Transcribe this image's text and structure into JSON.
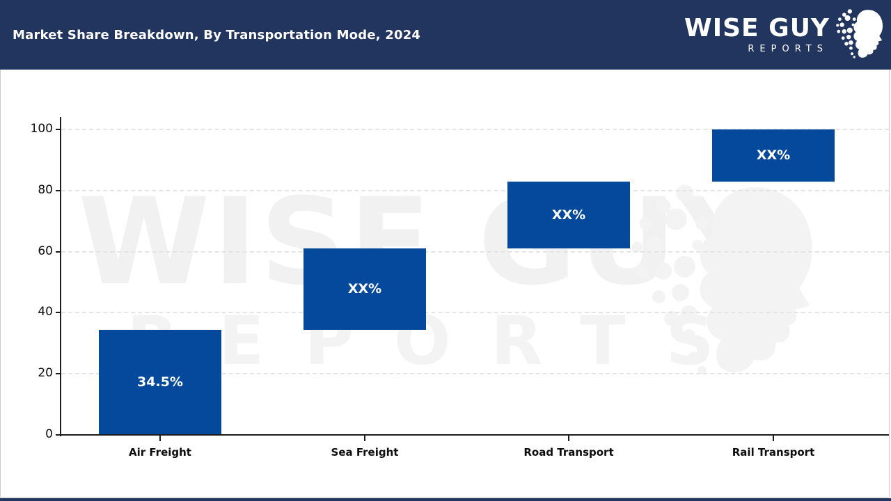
{
  "header": {
    "title": "Market Share Breakdown, By Transportation Mode, 2024",
    "logo": {
      "name": "WISE GUY",
      "sub": "REPORTS"
    }
  },
  "watermark": {
    "line1": "WISE GUY",
    "line2": "REPORTS"
  },
  "colors": {
    "header_bg": "#21355e",
    "bar": "#05499c",
    "bar_label": "#ffffff",
    "grid": "#e4e4e4",
    "axis": "#1c1c1c",
    "watermark": "#f1f1f1",
    "card_border": "#cccccc"
  },
  "chart_data": {
    "type": "bar",
    "variant": "floating-waterfall",
    "title": "Market Share Breakdown, By Transportation Mode, 2024",
    "categories": [
      "Air Freight",
      "Sea Freight",
      "Road Transport",
      "Rail Transport"
    ],
    "segments": [
      {
        "category": "Air Freight",
        "start": 0,
        "end": 34.5,
        "label": "34.5%"
      },
      {
        "category": "Sea Freight",
        "start": 34.5,
        "end": 61,
        "label": "XX%"
      },
      {
        "category": "Road Transport",
        "start": 61,
        "end": 83,
        "label": "XX%"
      },
      {
        "category": "Rail Transport",
        "start": 83,
        "end": 100,
        "label": "XX%"
      }
    ],
    "values_displayed": [
      "34.5%",
      "XX%",
      "XX%",
      "XX%"
    ],
    "ylim": [
      0,
      100
    ],
    "yticks": [
      0,
      20,
      40,
      60,
      80,
      100
    ],
    "grid": "horizontal-dashed",
    "legend": "none",
    "xlabel": "",
    "ylabel": ""
  }
}
